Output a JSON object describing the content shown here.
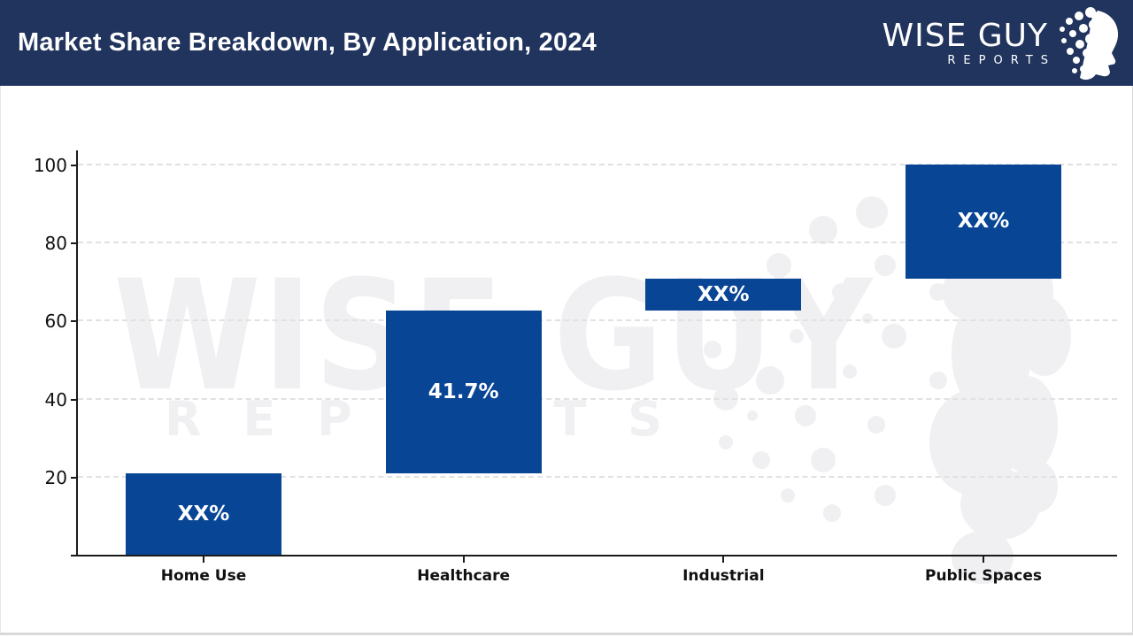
{
  "header": {
    "title": "Market Share Breakdown, By Application, 2024",
    "background_color": "#21345e",
    "logo": {
      "wordmark": "WISE GUY",
      "subtitle": "REPORTS",
      "face_icon": "dotted-head-profile-icon"
    }
  },
  "watermark": {
    "line1": "WISE GUY",
    "line2": "R E P O R T S",
    "color": "#f0f0f2"
  },
  "chart_data": {
    "type": "bar",
    "subtype": "floating-waterfall",
    "title": "Market Share Breakdown, By Application, 2024",
    "categories": [
      "Home Use",
      "Healthcare",
      "Industrial",
      "Public Spaces"
    ],
    "segments": [
      {
        "category": "Home Use",
        "start": 0,
        "end": 20.8,
        "value": 20.8,
        "label": "XX%"
      },
      {
        "category": "Healthcare",
        "start": 20.8,
        "end": 62.5,
        "value": 41.7,
        "label": "41.7%"
      },
      {
        "category": "Industrial",
        "start": 62.5,
        "end": 70.8,
        "value": 8.3,
        "label": "XX%"
      },
      {
        "category": "Public Spaces",
        "start": 70.8,
        "end": 100,
        "value": 29.2,
        "label": "XX%"
      }
    ],
    "y_ticks": [
      0,
      20,
      40,
      60,
      80,
      100
    ],
    "ylim": [
      0,
      103.6
    ],
    "xlabel": "",
    "ylabel": "",
    "grid": "horizontal-dashed",
    "legend": "none",
    "bar_color": "#084595",
    "bar_label_color": "#ffffff",
    "axis_color": "#1a1a1a"
  }
}
